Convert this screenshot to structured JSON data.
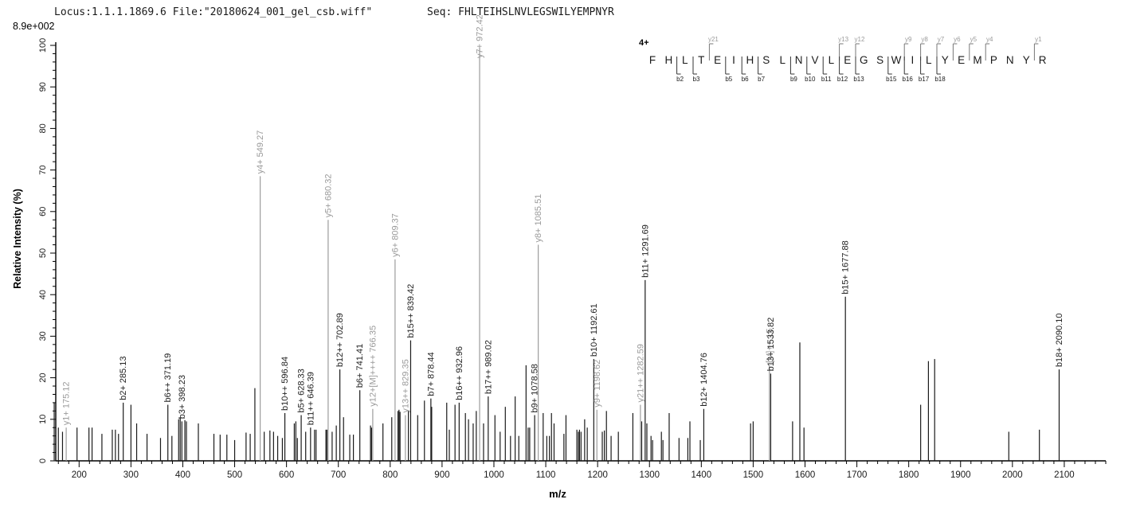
{
  "header": {
    "locus_file": "Locus:1.1.1.1869.6 File:\"20180624_001_gel_csb.wiff\"",
    "seq_line": "Seq: FHLTEIHSLNVLEGSWILYEMPNYR",
    "max_intensity": "8.9e+002"
  },
  "annotation": {
    "charge": "4+",
    "sequence": "FHLTEIHSLNVLEGSWILYEMPNYR",
    "y_ions": [
      {
        "gap": 4,
        "label": "y21"
      },
      {
        "gap": 12,
        "label": "y13"
      },
      {
        "gap": 13,
        "label": "y12"
      },
      {
        "gap": 16,
        "label": "y9"
      },
      {
        "gap": 17,
        "label": "y8"
      },
      {
        "gap": 18,
        "label": "y7"
      },
      {
        "gap": 19,
        "label": "y6"
      },
      {
        "gap": 20,
        "label": "y5"
      },
      {
        "gap": 21,
        "label": "y4"
      },
      {
        "gap": 24,
        "label": "y1"
      }
    ],
    "b_ions": [
      {
        "gap": 2,
        "label": "b2"
      },
      {
        "gap": 3,
        "label": "b3"
      },
      {
        "gap": 5,
        "label": "b5"
      },
      {
        "gap": 6,
        "label": "b6"
      },
      {
        "gap": 7,
        "label": "b7"
      },
      {
        "gap": 9,
        "label": "b9"
      },
      {
        "gap": 10,
        "label": "b10"
      },
      {
        "gap": 11,
        "label": "b11"
      },
      {
        "gap": 12,
        "label": "b12"
      },
      {
        "gap": 13,
        "label": "b13"
      },
      {
        "gap": 15,
        "label": "b15"
      },
      {
        "gap": 16,
        "label": "b16"
      },
      {
        "gap": 17,
        "label": "b17"
      },
      {
        "gap": 18,
        "label": "b18"
      }
    ]
  },
  "colors": {
    "b_series": "#1a1a1a",
    "y_series": "#9c9c9c",
    "axis": "#000000",
    "tick_text": "#1a1a1a"
  },
  "chart_data": {
    "type": "bar",
    "subtype": "ms2-stick-spectrum",
    "title": "",
    "xlabel": "m/z",
    "ylabel": "Relative  Intensity (%)",
    "xlim": [
      155,
      2180
    ],
    "ylim": [
      0,
      100
    ],
    "x_major_tick_start": 200,
    "x_major_tick_end": 2100,
    "x_major_tick_step": 100,
    "x_minor_tick_step": 20,
    "y_major_tick_step": 10,
    "y_minor_tick_step": 2,
    "grid": false,
    "legend": "none",
    "labeled_peaks": [
      {
        "mz": 175.12,
        "intensity": 8,
        "label": "y1+ 175.12",
        "series": "y"
      },
      {
        "mz": 285.13,
        "intensity": 14,
        "label": "b2+ 285.13",
        "series": "b"
      },
      {
        "mz": 371.19,
        "intensity": 13.5,
        "label": "b6++ 371.19",
        "series": "b"
      },
      {
        "mz": 398.23,
        "intensity": 9.5,
        "label": "b3+ 398.23",
        "series": "b"
      },
      {
        "mz": 549.27,
        "intensity": 68.5,
        "label": "y4+ 549.27",
        "series": "y"
      },
      {
        "mz": 596.84,
        "intensity": 11.5,
        "label": "b10++ 596.84",
        "series": "b"
      },
      {
        "mz": 628.33,
        "intensity": 11,
        "label": "b5+ 628.33",
        "series": "b"
      },
      {
        "mz": 646.39,
        "intensity": 8,
        "label": "b11++ 646.39",
        "series": "b"
      },
      {
        "mz": 680.32,
        "intensity": 58,
        "label": "y5+ 680.32",
        "series": "y"
      },
      {
        "mz": 702.89,
        "intensity": 22,
        "label": "b12++ 702.89",
        "series": "b"
      },
      {
        "mz": 741.41,
        "intensity": 17,
        "label": "b6+ 741.41",
        "series": "b"
      },
      {
        "mz": 766.35,
        "intensity": 12.5,
        "label": "y12+[M]++++ 766.35",
        "series": "y"
      },
      {
        "mz": 809.37,
        "intensity": 48.5,
        "label": "y6+ 809.37",
        "series": "y"
      },
      {
        "mz": 829.35,
        "intensity": 11,
        "label": "y13++ 829.35",
        "series": "y"
      },
      {
        "mz": 839.42,
        "intensity": 29,
        "label": "b15++ 839.42",
        "series": "b"
      },
      {
        "mz": 878.44,
        "intensity": 15,
        "label": "b7+ 878.44",
        "series": "b"
      },
      {
        "mz": 932.96,
        "intensity": 14,
        "label": "b16++ 932.96",
        "series": "b"
      },
      {
        "mz": 972.42,
        "intensity": 99.5,
        "label": "y7+ 972.42",
        "series": "y"
      },
      {
        "mz": 989.02,
        "intensity": 15.5,
        "label": "b17++ 989.02",
        "series": "b"
      },
      {
        "mz": 1078.58,
        "intensity": 11,
        "label": "b9+ 1078.58",
        "series": "b"
      },
      {
        "mz": 1085.51,
        "intensity": 52,
        "label": "y8+ 1085.51",
        "series": "y"
      },
      {
        "mz": 1192.61,
        "intensity": 24.5,
        "label": "b10+ 1192.61",
        "series": "b"
      },
      {
        "mz": 1198.62,
        "intensity": 12.3,
        "label": "y9+ 1198.62",
        "series": "y"
      },
      {
        "mz": 1282.59,
        "intensity": 13.5,
        "label": "y21++ 1282.59",
        "series": "y"
      },
      {
        "mz": 1291.69,
        "intensity": 43.5,
        "label": "b11+ 1291.69",
        "series": "b"
      },
      {
        "mz": 1404.76,
        "intensity": 12.5,
        "label": "b12+ 1404.76",
        "series": "b"
      },
      {
        "mz": 1531.3,
        "intensity": 23,
        "label": "[M]++ 15",
        "series": "y"
      },
      {
        "mz": 1533.82,
        "intensity": 21,
        "label": "b13+ 1533.82",
        "series": "b"
      },
      {
        "mz": 1677.88,
        "intensity": 39.5,
        "label": "b15+ 1677.88",
        "series": "b"
      },
      {
        "mz": 2090.1,
        "intensity": 22,
        "label": "b18+ 2090.10",
        "series": "b"
      }
    ],
    "unlabeled_peaks": [
      [
        152,
        14
      ],
      [
        160,
        8
      ],
      [
        168,
        7
      ],
      [
        196,
        8
      ],
      [
        219,
        8
      ],
      [
        225,
        8
      ],
      [
        244,
        6.5
      ],
      [
        264,
        7.5
      ],
      [
        270,
        7.5
      ],
      [
        276,
        6.5
      ],
      [
        300,
        13.5
      ],
      [
        311,
        9
      ],
      [
        331,
        6.5
      ],
      [
        357,
        5.5
      ],
      [
        379,
        6
      ],
      [
        392,
        10
      ],
      [
        395,
        10.5
      ],
      [
        404,
        9.8
      ],
      [
        407,
        9.5
      ],
      [
        430,
        9
      ],
      [
        460,
        6.5
      ],
      [
        472,
        6.3
      ],
      [
        485,
        6.3
      ],
      [
        500,
        5
      ],
      [
        522,
        6.8
      ],
      [
        530,
        6.5
      ],
      [
        539,
        17.5
      ],
      [
        557,
        7
      ],
      [
        568,
        7.3
      ],
      [
        575,
        7
      ],
      [
        583,
        6
      ],
      [
        592,
        5.5
      ],
      [
        615,
        9
      ],
      [
        618,
        9.5
      ],
      [
        621,
        5.5
      ],
      [
        637,
        7
      ],
      [
        654,
        7.5
      ],
      [
        657,
        7.5
      ],
      [
        676,
        7.5
      ],
      [
        678,
        7.5
      ],
      [
        688,
        7
      ],
      [
        696,
        8.5
      ],
      [
        710,
        10.5
      ],
      [
        722,
        6.3
      ],
      [
        729,
        6.3
      ],
      [
        762,
        8.5
      ],
      [
        764,
        8
      ],
      [
        786,
        9
      ],
      [
        803,
        10.5
      ],
      [
        815,
        12
      ],
      [
        817,
        12.3
      ],
      [
        819,
        11.8
      ],
      [
        835,
        12
      ],
      [
        853,
        11
      ],
      [
        866,
        14.5
      ],
      [
        880,
        13
      ],
      [
        909,
        14
      ],
      [
        914,
        7.5
      ],
      [
        925,
        13.5
      ],
      [
        945,
        11.5
      ],
      [
        951,
        10
      ],
      [
        960,
        9
      ],
      [
        966,
        12
      ],
      [
        980,
        9
      ],
      [
        1002,
        11
      ],
      [
        1012,
        7
      ],
      [
        1022,
        13
      ],
      [
        1032,
        6
      ],
      [
        1041,
        15.5
      ],
      [
        1048,
        6
      ],
      [
        1062,
        23
      ],
      [
        1066,
        8
      ],
      [
        1069,
        8
      ],
      [
        1095,
        11.5
      ],
      [
        1102,
        6
      ],
      [
        1107,
        6
      ],
      [
        1111,
        11.5
      ],
      [
        1116,
        9
      ],
      [
        1135,
        6.5
      ],
      [
        1139,
        11
      ],
      [
        1160,
        7.5
      ],
      [
        1163,
        7
      ],
      [
        1165,
        7.5
      ],
      [
        1168,
        7
      ],
      [
        1175,
        10
      ],
      [
        1180,
        8
      ],
      [
        1209,
        7
      ],
      [
        1213,
        7.3
      ],
      [
        1217,
        12
      ],
      [
        1226,
        6
      ],
      [
        1240,
        7
      ],
      [
        1268,
        11.5
      ],
      [
        1285,
        9.5
      ],
      [
        1295,
        9
      ],
      [
        1303,
        6
      ],
      [
        1306,
        5
      ],
      [
        1323,
        7
      ],
      [
        1326,
        5
      ],
      [
        1338,
        11.5
      ],
      [
        1357,
        5.5
      ],
      [
        1374,
        5.5
      ],
      [
        1378,
        9.5
      ],
      [
        1398,
        5
      ],
      [
        1495,
        9
      ],
      [
        1500,
        9.5
      ],
      [
        1576,
        9.5
      ],
      [
        1590,
        28.5
      ],
      [
        1598,
        8
      ],
      [
        1823,
        13.5
      ],
      [
        1838,
        24
      ],
      [
        1850,
        24.5
      ],
      [
        1993,
        7
      ],
      [
        2052,
        7.5
      ]
    ]
  }
}
